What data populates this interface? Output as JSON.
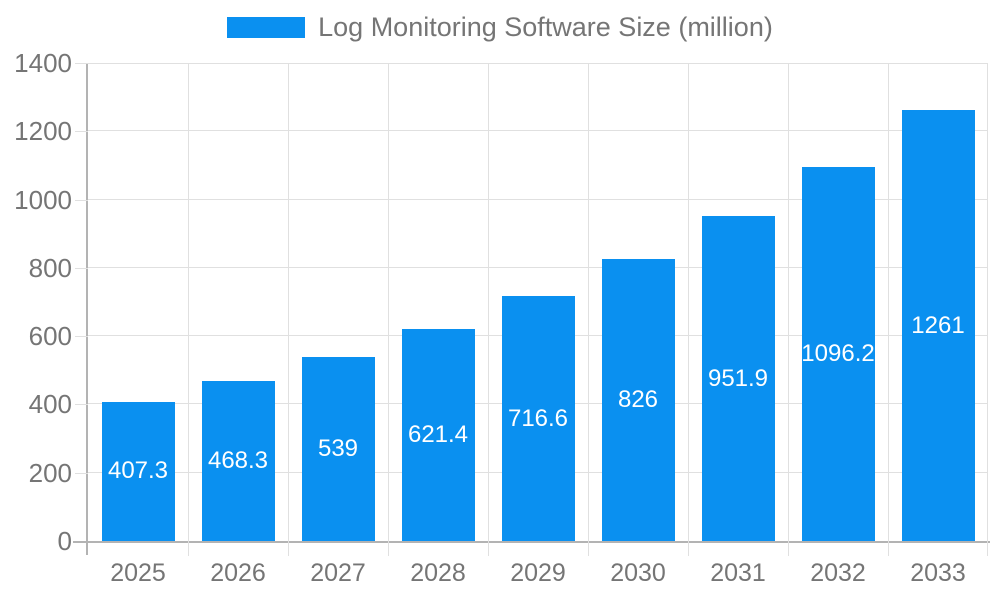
{
  "chart_data": {
    "type": "bar",
    "title": "Log Monitoring Software Size (million)",
    "categories": [
      "2025",
      "2026",
      "2027",
      "2028",
      "2029",
      "2030",
      "2031",
      "2032",
      "2033"
    ],
    "values": [
      407.3,
      468.3,
      539,
      621.4,
      716.6,
      826,
      951.9,
      1096.2,
      1261
    ],
    "value_labels": [
      "407.3",
      "468.3",
      "539",
      "621.4",
      "716.6",
      "826",
      "951.9",
      "1096.2",
      "1261"
    ],
    "xlabel": "",
    "ylabel": "",
    "ylim": [
      0,
      1400
    ],
    "yticks": [
      0,
      200,
      400,
      600,
      800,
      1000,
      1200,
      1400
    ],
    "grid": true,
    "legend_position": "top-center",
    "colors": {
      "bar": "#0a90f0",
      "bar_label_text": "#ffffff",
      "axis_text": "#757575",
      "grid_line": "#e0e0e0",
      "axis_line": "#b3b3b3",
      "background": "#ffffff"
    }
  }
}
